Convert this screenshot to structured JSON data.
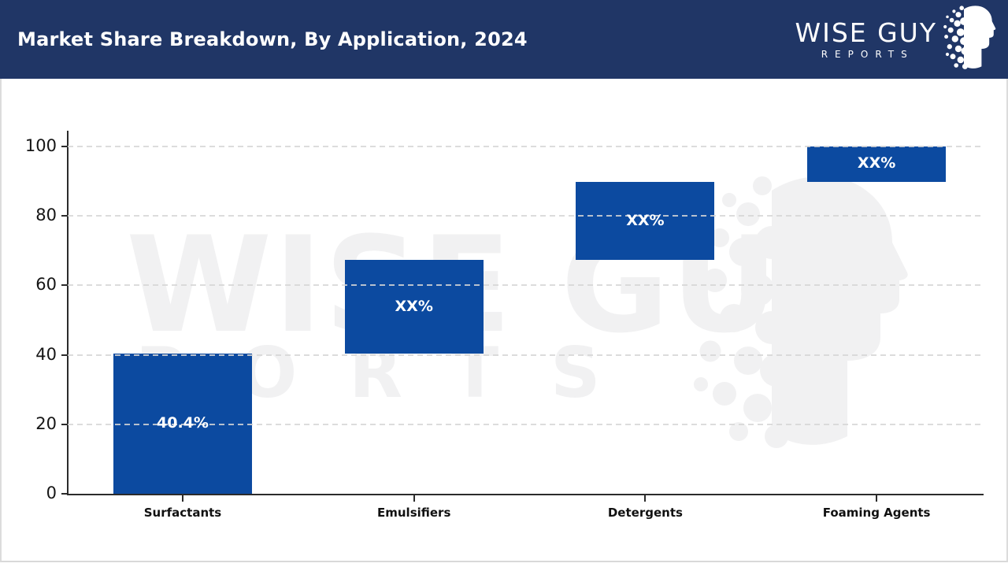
{
  "header": {
    "title": "Market Share Breakdown, By Application, 2024",
    "logo": {
      "line1": "WISE GUY",
      "line2": "REPORTS"
    }
  },
  "watermark": {
    "line1": "WISE GU",
    "line2": "PORTS"
  },
  "chart_data": {
    "type": "bar",
    "variant": "waterfall",
    "title": "Market Share Breakdown, By Application, 2024",
    "categories": [
      "Surfactants",
      "Emulsifiers",
      "Detergents",
      "Foaming Agents"
    ],
    "segments": [
      {
        "category": "Surfactants",
        "start": 0,
        "end": 40.4,
        "label": "40.4%"
      },
      {
        "category": "Emulsifiers",
        "start": 40.4,
        "end": 67.3,
        "label": "XX%"
      },
      {
        "category": "Detergents",
        "start": 67.3,
        "end": 89.8,
        "label": "XX%"
      },
      {
        "category": "Foaming Agents",
        "start": 89.8,
        "end": 100,
        "label": "XX%"
      }
    ],
    "yticks": [
      0,
      20,
      40,
      60,
      80,
      100
    ],
    "ylim": [
      0,
      105
    ],
    "xlabel": "",
    "ylabel": "",
    "grid": "horizontal-dashed",
    "legend": "none",
    "bar_color": "#0c4aa0",
    "bar_label_color": "#ffffff"
  },
  "colors": {
    "header_bg": "#203666",
    "bar": "#0c4aa0",
    "grid": "#d9d9d9",
    "axis": "#2b2b2b",
    "watermark": "#f1f1f2",
    "border": "#dcdcdc"
  }
}
